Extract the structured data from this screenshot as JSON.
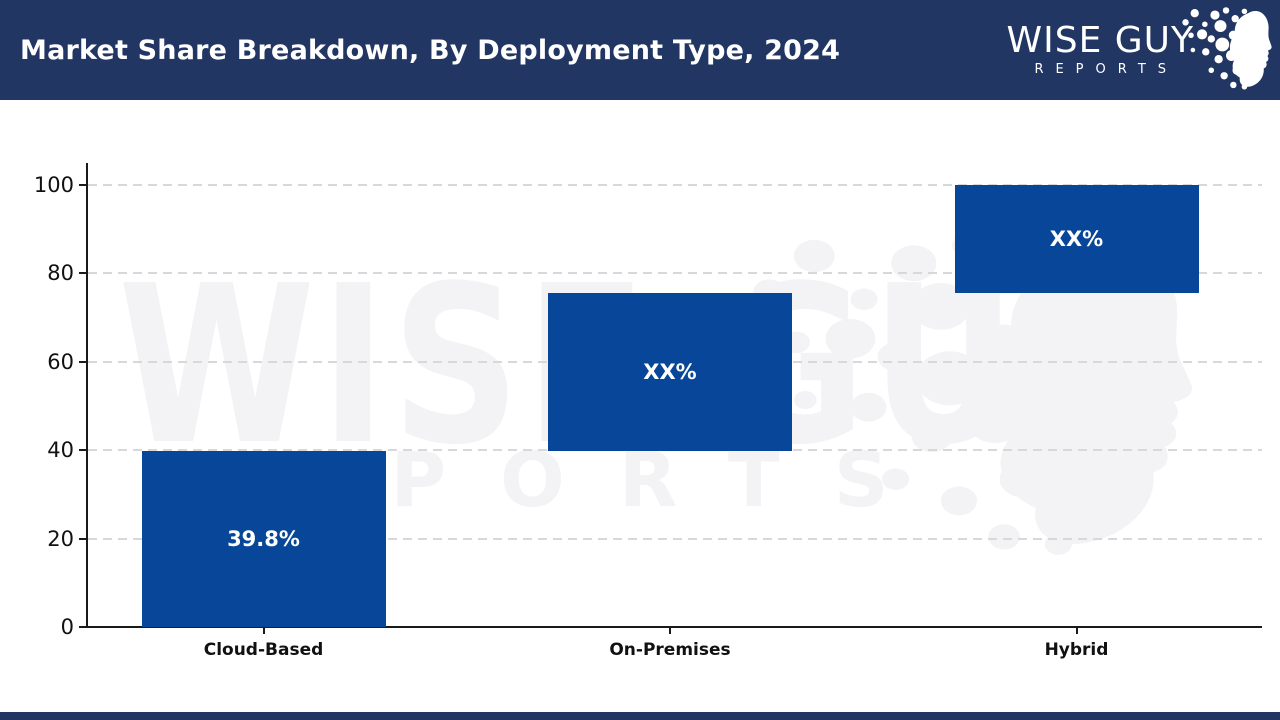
{
  "header": {
    "title": "Market Share Breakdown, By Deployment Type, 2024",
    "logo": {
      "brand": "WISE GUY",
      "sub": "REPORTS"
    }
  },
  "watermark": {
    "brand": "WISE GUY",
    "sub": "REPORTS"
  },
  "chart_data": {
    "type": "bar",
    "variant": "floating stacked percentage segments (waterfall-style share breakdown)",
    "title": "Market Share Breakdown, By Deployment Type, 2024",
    "categories": [
      "Cloud-Based",
      "On-Premises",
      "Hybrid"
    ],
    "segments": [
      {
        "category": "Cloud-Based",
        "start": 0,
        "end": 39.8,
        "label": "39.8%"
      },
      {
        "category": "On-Premises",
        "start": 39.8,
        "end": 75.5,
        "label": "XX%"
      },
      {
        "category": "Hybrid",
        "start": 75.5,
        "end": 100,
        "label": "XX%"
      }
    ],
    "xlabel": "",
    "ylabel": "",
    "yticks": [
      0,
      20,
      40,
      60,
      80,
      100
    ],
    "ylim": [
      0,
      105
    ],
    "grid": "horizontal dashed gridlines at each y tick",
    "legend": "none",
    "bar_color": "#084699",
    "bar_label_color": "#ffffff"
  },
  "colors": {
    "header_bg": "#223663",
    "footer_bg": "#223663",
    "bar": "#084699",
    "watermark": "#f3f3f5",
    "gridline": "#d8d8d8",
    "axis": "#1a1a1a",
    "page_bg": "#ffffff"
  }
}
